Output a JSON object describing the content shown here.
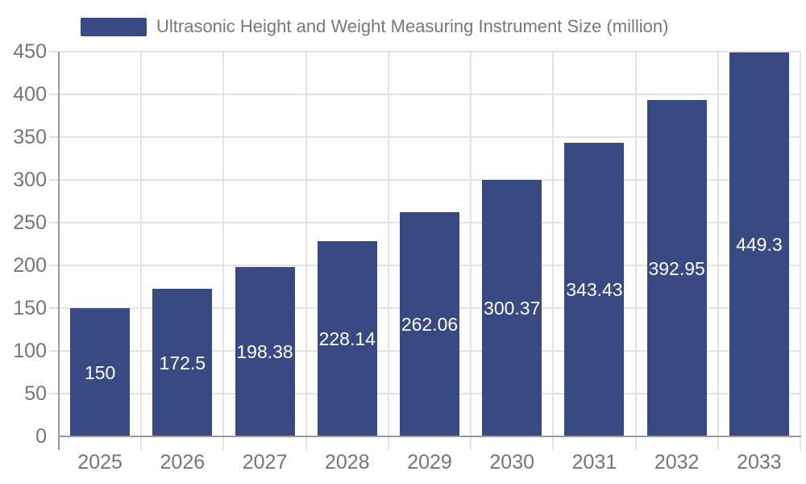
{
  "legend": {
    "label": "Ultrasonic Height and Weight Measuring Instrument Size (million)",
    "swatch_color": "#394984"
  },
  "chart_data": {
    "type": "bar",
    "title": "Ultrasonic Height and Weight Measuring Instrument Size (million)",
    "categories": [
      "2025",
      "2026",
      "2027",
      "2028",
      "2029",
      "2030",
      "2031",
      "2032",
      "2033"
    ],
    "values": [
      150,
      172.5,
      198.38,
      228.14,
      262.06,
      300.37,
      343.43,
      392.95,
      449.3
    ],
    "value_labels": [
      "150",
      "172.5",
      "198.38",
      "228.14",
      "262.06",
      "300.37",
      "343.43",
      "392.95",
      "449.3"
    ],
    "xlabel": "",
    "ylabel": "",
    "ylim": [
      0,
      450
    ],
    "ytick_step": 50,
    "ytick_labels": [
      "0",
      "50",
      "100",
      "150",
      "200",
      "250",
      "300",
      "350",
      "400",
      "450"
    ],
    "grid": true,
    "legend_position": "top-center",
    "bar_color": "#394984",
    "value_label_color": "#FFFFFF",
    "axis_label_color": "#757575",
    "gridline_color": "#E3E3E3",
    "axis_line_color": "#9A9A9A"
  }
}
